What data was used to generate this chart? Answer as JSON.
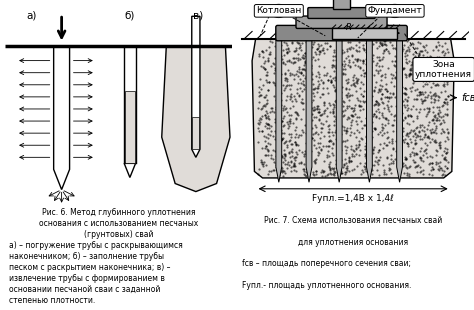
{
  "bg_color": "#ffffff",
  "fig_width": 4.74,
  "fig_height": 3.1,
  "dpi": 100,
  "left_caption_line1": "Рис. 6. Метод глубинного уплотнения",
  "left_caption_line2": "основания с использованием песчаных",
  "left_caption_line3": "(грунтовых) свай",
  "left_caption_line4": "а) – погружение трубы с раскрывающимся",
  "left_caption_line5": "наконечником; б) – заполнение трубы",
  "left_caption_line6": "песком с раскрытием наконечника; в) –",
  "left_caption_line7": "извлечение трубы с формированием в",
  "left_caption_line8": "основании песчаной сваи с заданной",
  "left_caption_line9": "степенью плотности.",
  "right_caption_line1": "Рис. 7. Схема использования песчаных свай",
  "right_caption_line2": "для уплотнения основания",
  "right_caption_line3": "fсв – площадь поперечного сечения сваи;",
  "right_caption_line4": "Fупл.- площадь уплотненного основания.",
  "label_a": "а)",
  "label_b": "б)",
  "label_v": "в)",
  "label_kotlovan": "Котлован",
  "label_fundament": "Фундамент",
  "label_zona_1": "Зона",
  "label_zona_2": "уплотнения",
  "label_fsv": "fсв",
  "label_fupl": "Fупл.=1,4B x 1,4ℓ",
  "label_r": "R",
  "sand_color": "#e0dcd8",
  "pile_color": "#b8b8b8",
  "cap_color": "#a0a0a0",
  "cap_dark": "#888888",
  "ground_color": "#000000"
}
